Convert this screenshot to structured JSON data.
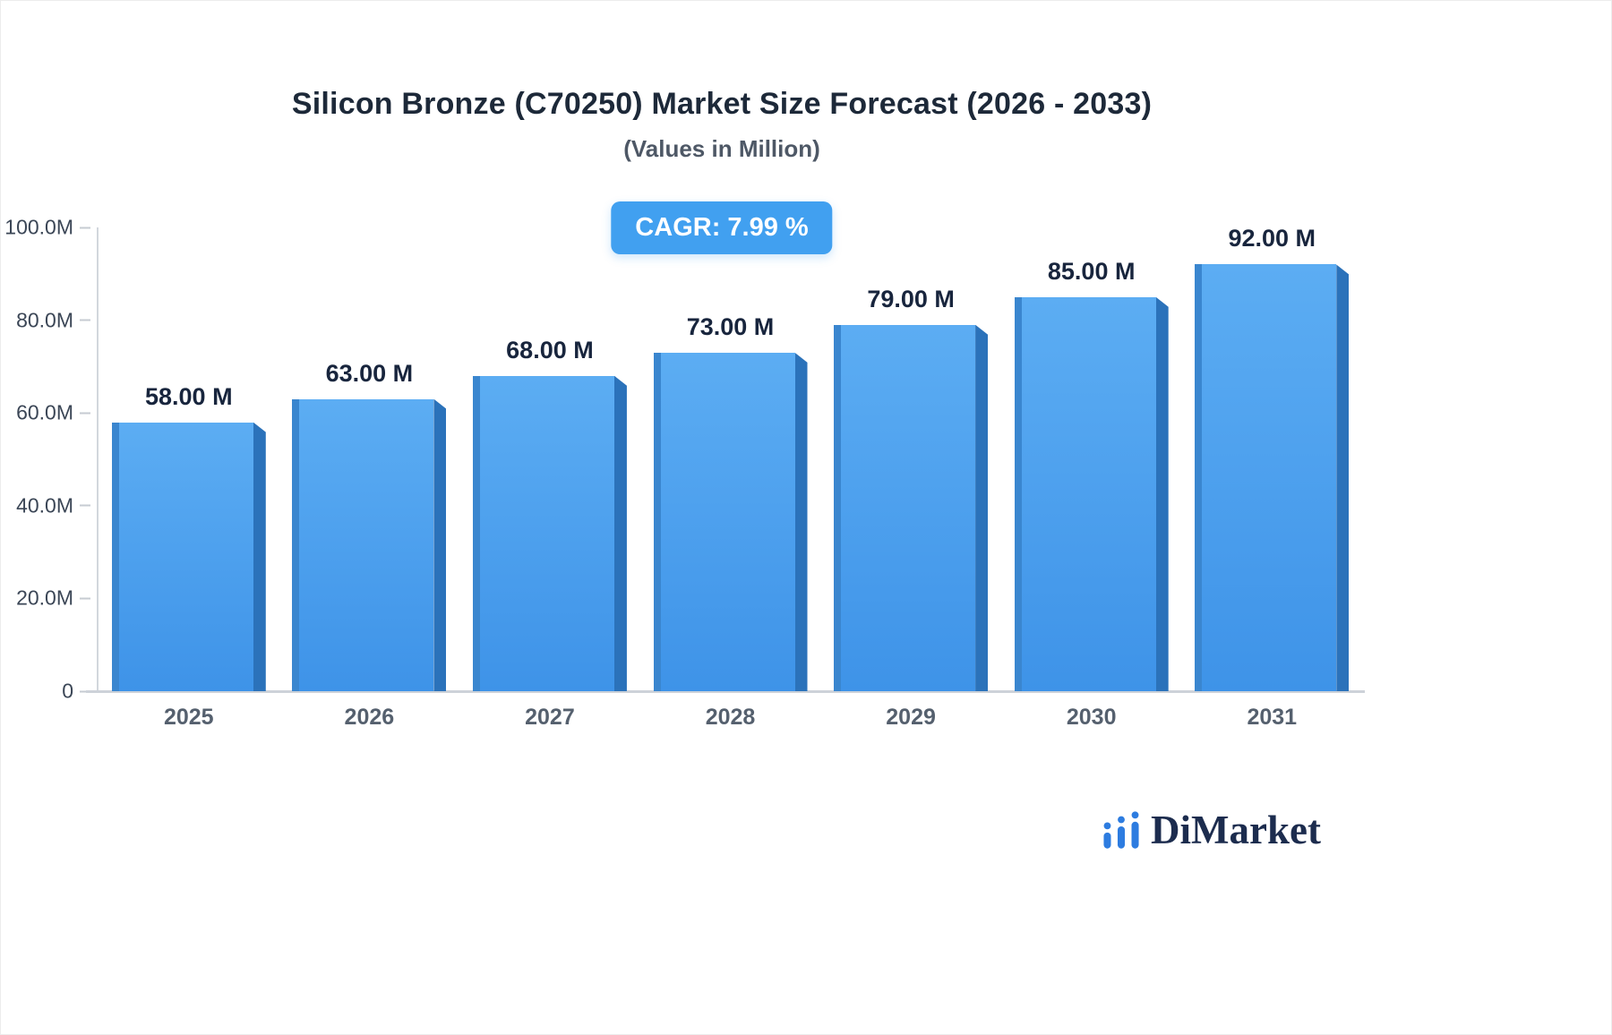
{
  "brand": {
    "name": "DiMarket"
  },
  "chart_data": {
    "type": "bar",
    "title": "Silicon Bronze (C70250) Market Size Forecast (2026 - 2033)",
    "subtitle": "(Values in Million)",
    "cagr_label": "CAGR: 7.99 %",
    "categories": [
      "2025",
      "2026",
      "2027",
      "2028",
      "2029",
      "2030",
      "2031"
    ],
    "values": [
      58,
      63,
      68,
      73,
      79,
      85,
      92
    ],
    "value_labels": [
      "58.00 M",
      "63.00 M",
      "68.00 M",
      "73.00 M",
      "79.00 M",
      "85.00 M",
      "92.00 M"
    ],
    "unit": "Million",
    "xlabel": "",
    "ylabel": "",
    "ylim": [
      0,
      100
    ],
    "yticks": [
      "0",
      "20.0M",
      "40.0M",
      "60.0M",
      "80.0M",
      "100.0M"
    ],
    "grid": "off",
    "legend": "none",
    "colors": {
      "bar_top": "#5cadf3",
      "bar_bottom": "#3e93e8",
      "bar_side": "#2b72ba",
      "bar_edge": "#3a86cf",
      "accent": "#41a0f0",
      "title_text": "#1d2939",
      "logo_blue": "#2d7ce0"
    }
  }
}
